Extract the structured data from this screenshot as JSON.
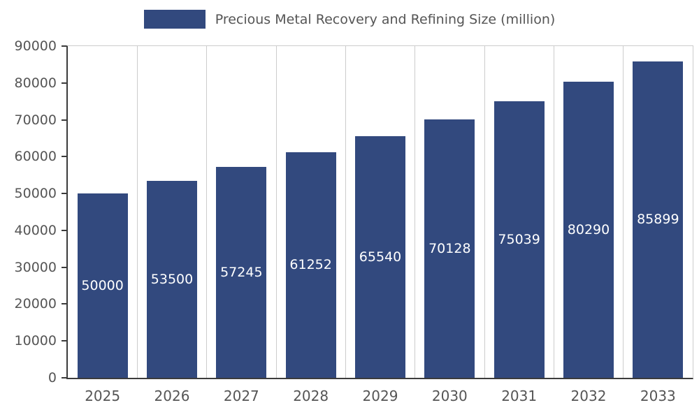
{
  "chart_data": {
    "type": "bar",
    "title": "Precious Metal Recovery and Refining Size (million)",
    "categories": [
      "2025",
      "2026",
      "2027",
      "2028",
      "2029",
      "2030",
      "2031",
      "2032",
      "2033"
    ],
    "values": [
      50000,
      53500,
      57245,
      61252,
      65540,
      70128,
      75039,
      80290,
      85899
    ],
    "xlabel": "",
    "ylabel": "",
    "ylim": [
      0,
      90000
    ],
    "ytick_step": 10000,
    "grid": "vertical",
    "legend_position": "top-center",
    "colors": {
      "bar": "#32497E",
      "bar_value_label": "#ffffff",
      "axis_line": "#3c3c3c",
      "axis_text": "#555555",
      "gridline": "#cccccc",
      "background": "#ffffff"
    }
  }
}
